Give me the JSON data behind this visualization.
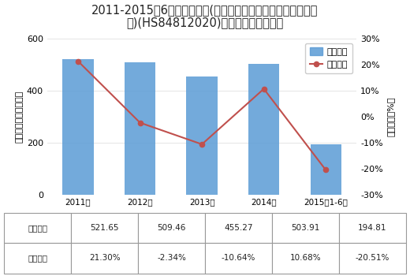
{
  "title_line1": "2011-2015年6月气压传动阀(用于管道、锅炉、罐、桶或类似品",
  "title_line2": "的)(HS84812020)进口总额及增速统计",
  "categories": [
    "2011年",
    "2012年",
    "2013年",
    "2014年",
    "2015年1-6月"
  ],
  "bar_values": [
    521.65,
    509.46,
    455.27,
    503.91,
    194.81
  ],
  "line_values": [
    21.3,
    -2.34,
    -10.64,
    10.68,
    -20.51
  ],
  "bar_color": "#5b9bd5",
  "line_color": "#c0504d",
  "ylim_left": [
    0,
    600
  ],
  "ylim_right": [
    -30,
    30
  ],
  "yticks_left": [
    0.0,
    200.0,
    400.0,
    600.0
  ],
  "yticks_right": [
    -30,
    -20,
    -10,
    0,
    10,
    20,
    30
  ],
  "ylabel_left": "进口金额（百万美元）",
  "ylabel_right": "同比增速（%）",
  "legend_bar": "进口金额",
  "legend_line": "同比增长",
  "table_row1_label": "进口金额",
  "table_row2_label": "同比增长",
  "table_row1_values": [
    "521.65",
    "509.46",
    "455.27",
    "503.91",
    "194.81"
  ],
  "table_row2_values": [
    "21.30%",
    "-2.34%",
    "-10.64%",
    "10.68%",
    "-20.51%"
  ],
  "bg_color": "#ffffff",
  "grid_color": "#e0e0e0"
}
